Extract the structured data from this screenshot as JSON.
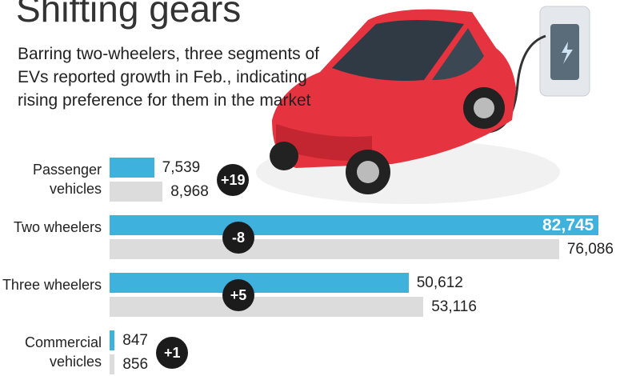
{
  "chart_data": {
    "type": "bar",
    "orientation": "horizontal",
    "title": "Shifting gears",
    "subtitle": "Barring two-wheelers, three segments of EVs reported growth in Feb., indicating rising preference for them in the market",
    "categories": [
      "Passenger vehicles",
      "Two wheelers",
      "Three wheelers",
      "Commercial vehicles"
    ],
    "series": [
      {
        "color": "#3fb1dd",
        "values": [
          7539,
          82745,
          50612,
          847
        ],
        "value_labels": [
          "7,539",
          "82,745",
          "50,612",
          "847"
        ]
      },
      {
        "color": "#dcdcdc",
        "values": [
          8968,
          76086,
          53116,
          856
        ],
        "value_labels": [
          "8,968",
          "76,086",
          "53,116",
          "856"
        ]
      }
    ],
    "annotations": [
      "+19",
      "-8",
      "+5",
      "+1"
    ]
  }
}
